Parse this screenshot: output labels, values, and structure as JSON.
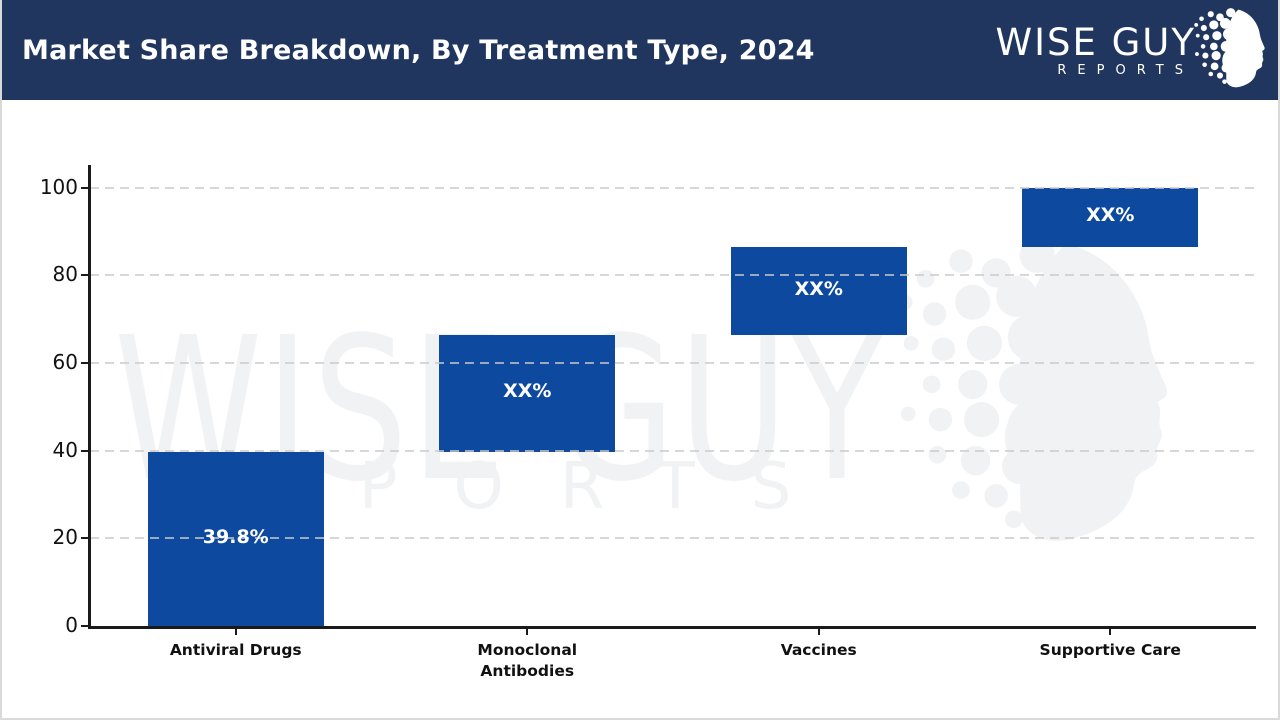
{
  "header": {
    "title": "Market Share Breakdown, By Treatment Type, 2024",
    "background": "#21365f",
    "logo": {
      "line1": "WISE GUY",
      "line2": "REPORTS"
    }
  },
  "watermark": {
    "line1": "WISE GUY",
    "line2": "REPORTS"
  },
  "chart_data": {
    "type": "bar",
    "subtype": "waterfall",
    "title": "Market Share Breakdown, By Treatment Type, 2024",
    "categories": [
      "Antiviral Drugs",
      "Monoclonal Antibodies",
      "Vaccines",
      "Supportive Care"
    ],
    "tick_labels": [
      "Antiviral Drugs",
      "Monoclonal\nAntibodies",
      "Vaccines",
      "Supportive Care"
    ],
    "segments": [
      {
        "category": "Antiviral Drugs",
        "start": 0,
        "end": 39.8,
        "label": "39.8%"
      },
      {
        "category": "Monoclonal Antibodies",
        "start": 39.8,
        "end": 66.5,
        "label": "XX%"
      },
      {
        "category": "Vaccines",
        "start": 66.5,
        "end": 86.5,
        "label": "XX%"
      },
      {
        "category": "Supportive Care",
        "start": 86.5,
        "end": 100,
        "label": "XX%"
      }
    ],
    "xlabel": "",
    "ylabel": "",
    "ylim": [
      0,
      100
    ],
    "yticks": [
      0,
      20,
      40,
      60,
      80,
      100
    ],
    "grid": {
      "axis": "y",
      "style": "dashed",
      "color": "#d9d9d9"
    },
    "legend": null,
    "bar_color": "#0d4a9f",
    "bar_label_color": "#ffffff",
    "label_color_first": "#ffffff"
  }
}
